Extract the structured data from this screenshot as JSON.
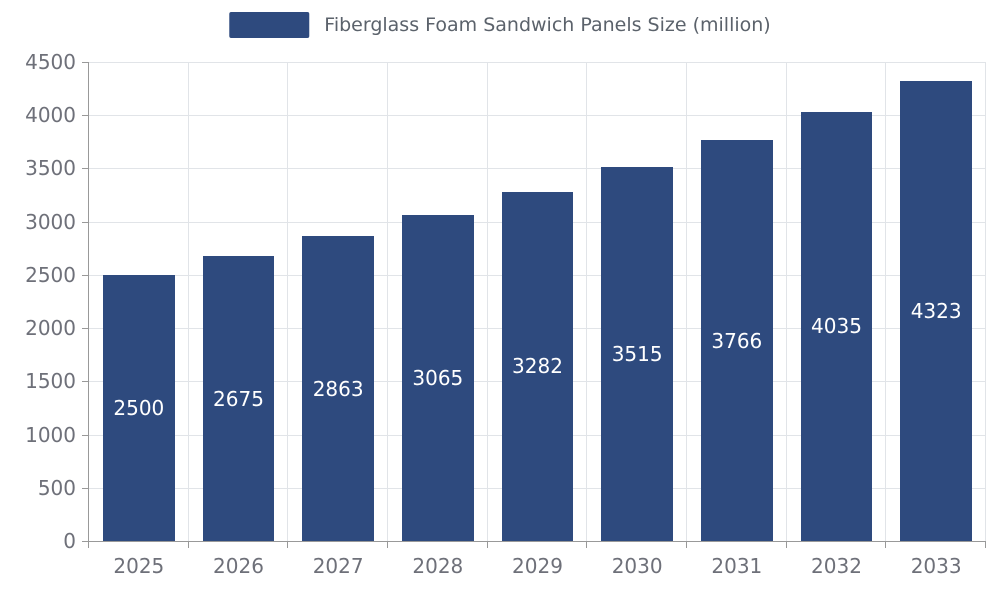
{
  "chart_data": {
    "type": "bar",
    "title": "Fiberglass Foam Sandwich Panels Size (million)",
    "categories": [
      "2025",
      "2026",
      "2027",
      "2028",
      "2029",
      "2030",
      "2031",
      "2032",
      "2033"
    ],
    "values": [
      2500,
      2675,
      2863,
      3065,
      3282,
      3515,
      3766,
      4035,
      4323
    ],
    "ylim": [
      0,
      4500
    ],
    "ytick_step": 500,
    "ytick_labels": [
      "0",
      "500",
      "1000",
      "1500",
      "2000",
      "2500",
      "3000",
      "3500",
      "4000",
      "4500"
    ],
    "grid": true,
    "legend_position": "top",
    "bar_label_position": "inside-middle",
    "colors": {
      "bar": "#2e4a7e",
      "bar_label": "#ffffff",
      "axis_label": "#6e7079",
      "axis_line": "#999999",
      "gridline": "#e1e4e8",
      "legend_text": "#5b626b"
    }
  }
}
